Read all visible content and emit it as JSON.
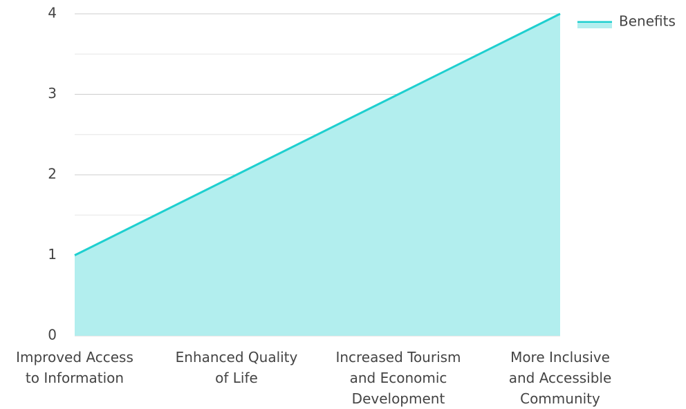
{
  "chart_data": {
    "type": "area",
    "categories": [
      "Improved Access\nto Information",
      "Enhanced Quality\nof Life",
      "Increased Tourism\nand Economic\nDevelopment",
      "More Inclusive\nand Accessible\nCommunity"
    ],
    "series": [
      {
        "name": "Benefits",
        "color": "#1ecfcf",
        "fill": "#b2eeee",
        "values": [
          1,
          2,
          3,
          4
        ]
      }
    ],
    "ylim": [
      0,
      4
    ],
    "yticks": [
      0,
      1,
      2,
      3,
      4
    ],
    "minor_yticks": [
      0.5,
      1.5,
      2.5,
      3.5
    ],
    "grid": true,
    "legend": "top-right"
  }
}
